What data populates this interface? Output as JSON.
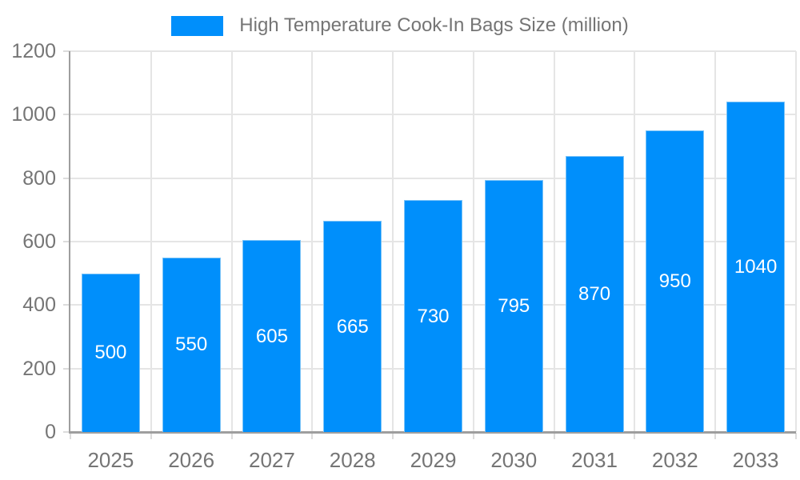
{
  "legend": {
    "label": "High Temperature Cook-In Bags Size (million)",
    "swatch_color": "#008FFB"
  },
  "chart_data": {
    "type": "bar",
    "title": "High Temperature Cook-In Bags Size (million)",
    "categories": [
      "2025",
      "2026",
      "2027",
      "2028",
      "2029",
      "2030",
      "2031",
      "2032",
      "2033"
    ],
    "values": [
      500,
      550,
      605,
      665,
      730,
      795,
      870,
      950,
      1040
    ],
    "series": [
      {
        "name": "High Temperature Cook-In Bags Size (million)",
        "values": [
          500,
          550,
          605,
          665,
          730,
          795,
          870,
          950,
          1040
        ]
      }
    ],
    "xlabel": "",
    "ylabel": "",
    "ylim": [
      0,
      1200
    ],
    "yticks": [
      0,
      200,
      400,
      600,
      800,
      1000,
      1200
    ],
    "grid": true,
    "legend_position": "top-center",
    "bar_color": "#008FFB",
    "bar_label_color": "#ffffff",
    "axis_text_color": "#757575",
    "gridline_color": "#e5e5e5",
    "axis_line_color": "#9e9e9e"
  }
}
